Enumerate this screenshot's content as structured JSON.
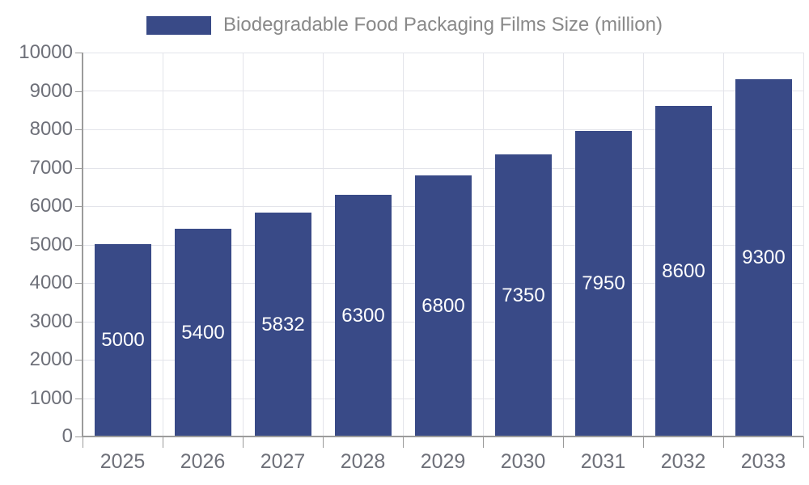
{
  "legend": {
    "label": "Biodegradable Food Packaging Films Size (million)"
  },
  "chart_data": {
    "type": "bar",
    "title": "Biodegradable Food Packaging Films Size (million)",
    "categories": [
      "2025",
      "2026",
      "2027",
      "2028",
      "2029",
      "2030",
      "2031",
      "2032",
      "2033"
    ],
    "values": [
      5000,
      5400,
      5832,
      6300,
      6800,
      7350,
      7950,
      8600,
      9300
    ],
    "xlabel": "",
    "ylabel": "",
    "ylim": [
      0,
      10000
    ],
    "yticks": [
      0,
      1000,
      2000,
      3000,
      4000,
      5000,
      6000,
      7000,
      8000,
      9000,
      10000
    ],
    "grid": true,
    "legend_position": "top",
    "bar_labels": "inside-center"
  },
  "colors": {
    "bar": "#394a87",
    "bar_label_text": "#ffffff",
    "legend_text": "#898989",
    "axis_label": "#6e7079",
    "axis_line": "#9b9b9b",
    "gridline": "#e3e4ea",
    "background": "#ffffff"
  }
}
